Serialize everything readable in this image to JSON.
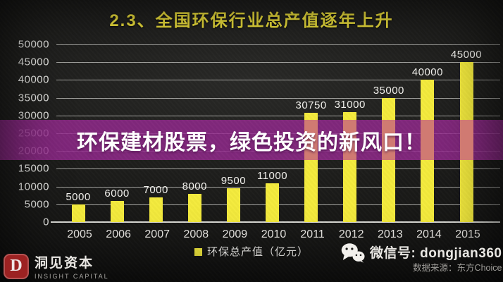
{
  "title": "2.3、全国环保行业总产值逐年上升",
  "overlay_banner": {
    "text": "环保建材股票，绿色投资的新风口！",
    "bg_color": "#93288d",
    "text_color": "#ffffff"
  },
  "chart_data": {
    "type": "bar",
    "title": "2.3、全国环保行业总产值逐年上升",
    "categories": [
      "2005",
      "2006",
      "2007",
      "2008",
      "2009",
      "2010",
      "2011",
      "2012",
      "2013",
      "2014",
      "2015"
    ],
    "values": [
      5000,
      6000,
      7000,
      8000,
      9500,
      11000,
      30750,
      31000,
      35000,
      40000,
      45000
    ],
    "series_name": "环保总产值（亿元）",
    "xlabel": "",
    "ylabel": "",
    "ylim": [
      0,
      50000
    ],
    "yticks": [
      0,
      5000,
      10000,
      15000,
      20000,
      25000,
      30000,
      35000,
      40000,
      45000,
      50000
    ],
    "grid": true,
    "legend_position": "bottom",
    "bar_color": "#f4eb3d"
  },
  "legend": {
    "label": "环保总产值（亿元）",
    "marker_color": "#f4eb3d"
  },
  "footer": {
    "left": {
      "brand": "洞见资本",
      "brand_sub": "INSIGHT CAPITAL"
    },
    "right": {
      "wechat_label": "微信号: dongjian360",
      "source": "数据来源：东方Choice"
    }
  },
  "colors": {
    "background": "#1c1c1a",
    "title_text": "#f0e23c",
    "bar": "#f4eb3d",
    "bar_under_banner": "#d07a72",
    "banner_bg": "#93288d",
    "gridline": "#d7d7d2",
    "axis_text": "#e9e9e6",
    "banner_text": "#ffffff",
    "logo_red": "#9c2222",
    "muted_text": "#a09e9a"
  }
}
